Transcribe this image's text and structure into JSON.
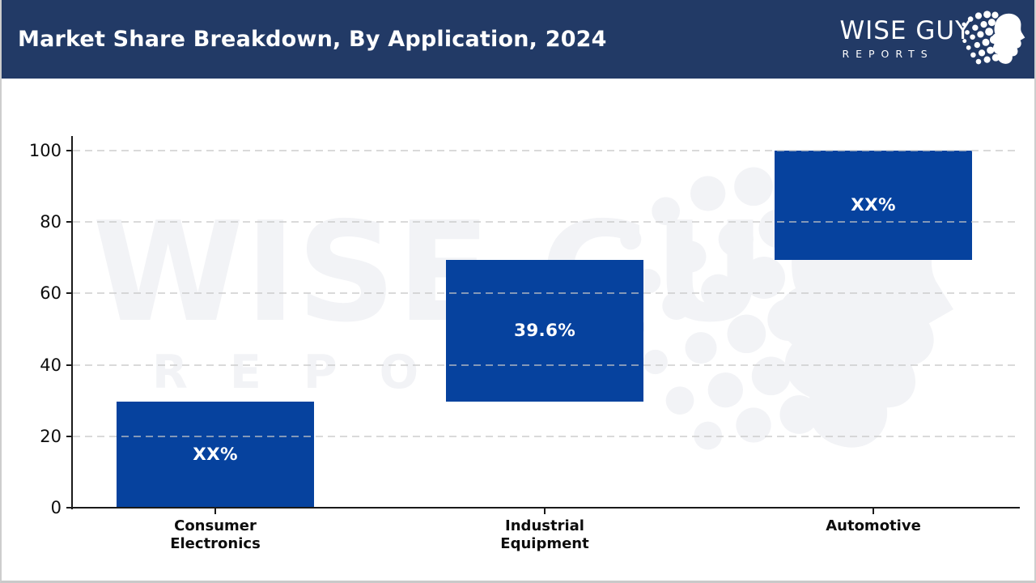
{
  "header": {
    "title": "Market Share Breakdown, By Application, 2024",
    "logo": {
      "line1": "WISE GUY",
      "line2": "REPORTS"
    }
  },
  "watermark": {
    "line1": "WISE GUY",
    "line2": "REPORTS"
  },
  "colors": {
    "header_bg": "#223a66",
    "bar": "#06429e",
    "bar_label": "#ffffff",
    "gridline": "#c6c6c6",
    "axis": "#1a1a1a",
    "watermark": "#f2f3f6"
  },
  "chart_data": {
    "type": "bar",
    "subtype": "floating-segment-breakdown",
    "title": "Market Share Breakdown, By Application, 2024",
    "categories": [
      [
        "Consumer",
        "Electronics"
      ],
      [
        "Industrial",
        "Equipment"
      ],
      [
        "Automotive"
      ]
    ],
    "segments": [
      {
        "category": "Consumer Electronics",
        "start": 0,
        "end": 29.7,
        "label": "XX%"
      },
      {
        "category": "Industrial Equipment",
        "start": 29.7,
        "end": 69.3,
        "label": "39.6%"
      },
      {
        "category": "Automotive",
        "start": 69.3,
        "end": 100,
        "label": "XX%"
      }
    ],
    "xlabel": "",
    "ylabel": "",
    "ylim": [
      0,
      100
    ],
    "yticks": [
      0,
      20,
      40,
      60,
      80,
      100
    ],
    "grid": "horizontal-dashed",
    "legend": "none",
    "bar_color": "#06429e",
    "bar_label_color": "#ffffff"
  }
}
